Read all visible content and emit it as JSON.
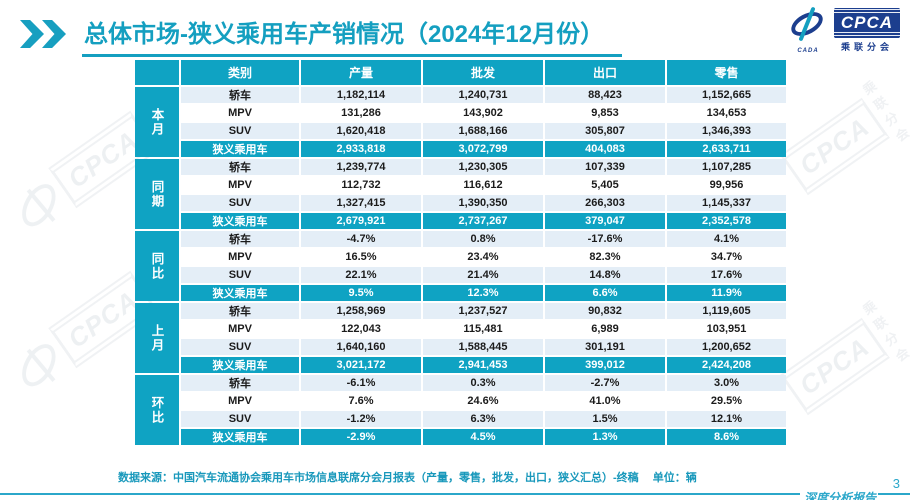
{
  "page": {
    "title": "总体市场-狭义乘用车产销情况（2024年12月份）",
    "source_note": "数据来源：中国汽车流通协会乘用车市场信息联席分会月报表（产量，零售，批发，出口，狭义汇总）-终稿　 单位：辆",
    "bottom_script": "深度分析报告",
    "page_number": "3"
  },
  "logo": {
    "emblem_text": "CADA",
    "cpca_text": "CPCA",
    "cpca_sub": "乘联分会"
  },
  "colors": {
    "teal_accent": "#149fc0",
    "table_teal": "#0fa3c3",
    "light_row": "#e4eef7",
    "logo_blue": "#1c3e8e"
  },
  "watermark": {
    "text": "CPCA",
    "sub": "乘联分会"
  },
  "table": {
    "columns": [
      "类别",
      "产量",
      "批发",
      "出口",
      "零售"
    ],
    "groups": [
      {
        "label": "本月",
        "rows": [
          {
            "category": "轿车",
            "values": [
              "1,182,114",
              "1,240,731",
              "88,423",
              "1,152,665"
            ]
          },
          {
            "category": "MPV",
            "values": [
              "131,286",
              "143,902",
              "9,853",
              "134,653"
            ]
          },
          {
            "category": "SUV",
            "values": [
              "1,620,418",
              "1,688,166",
              "305,807",
              "1,346,393"
            ]
          },
          {
            "category": "狭义乘用车",
            "values": [
              "2,933,818",
              "3,072,799",
              "404,083",
              "2,633,711"
            ],
            "summary": true
          }
        ]
      },
      {
        "label": "同期",
        "rows": [
          {
            "category": "轿车",
            "values": [
              "1,239,774",
              "1,230,305",
              "107,339",
              "1,107,285"
            ]
          },
          {
            "category": "MPV",
            "values": [
              "112,732",
              "116,612",
              "5,405",
              "99,956"
            ]
          },
          {
            "category": "SUV",
            "values": [
              "1,327,415",
              "1,390,350",
              "266,303",
              "1,145,337"
            ]
          },
          {
            "category": "狭义乘用车",
            "values": [
              "2,679,921",
              "2,737,267",
              "379,047",
              "2,352,578"
            ],
            "summary": true
          }
        ]
      },
      {
        "label": "同比",
        "rows": [
          {
            "category": "轿车",
            "values": [
              "-4.7%",
              "0.8%",
              "-17.6%",
              "4.1%"
            ]
          },
          {
            "category": "MPV",
            "values": [
              "16.5%",
              "23.4%",
              "82.3%",
              "34.7%"
            ]
          },
          {
            "category": "SUV",
            "values": [
              "22.1%",
              "21.4%",
              "14.8%",
              "17.6%"
            ]
          },
          {
            "category": "狭义乘用车",
            "values": [
              "9.5%",
              "12.3%",
              "6.6%",
              "11.9%"
            ],
            "summary": true
          }
        ]
      },
      {
        "label": "上月",
        "rows": [
          {
            "category": "轿车",
            "values": [
              "1,258,969",
              "1,237,527",
              "90,832",
              "1,119,605"
            ]
          },
          {
            "category": "MPV",
            "values": [
              "122,043",
              "115,481",
              "6,989",
              "103,951"
            ]
          },
          {
            "category": "SUV",
            "values": [
              "1,640,160",
              "1,588,445",
              "301,191",
              "1,200,652"
            ]
          },
          {
            "category": "狭义乘用车",
            "values": [
              "3,021,172",
              "2,941,453",
              "399,012",
              "2,424,208"
            ],
            "summary": true
          }
        ]
      },
      {
        "label": "环比",
        "rows": [
          {
            "category": "轿车",
            "values": [
              "-6.1%",
              "0.3%",
              "-2.7%",
              "3.0%"
            ]
          },
          {
            "category": "MPV",
            "values": [
              "7.6%",
              "24.6%",
              "41.0%",
              "29.5%"
            ]
          },
          {
            "category": "SUV",
            "values": [
              "-1.2%",
              "6.3%",
              "1.5%",
              "12.1%"
            ]
          },
          {
            "category": "狭义乘用车",
            "values": [
              "-2.9%",
              "4.5%",
              "1.3%",
              "8.6%"
            ],
            "summary": true
          }
        ]
      }
    ]
  }
}
